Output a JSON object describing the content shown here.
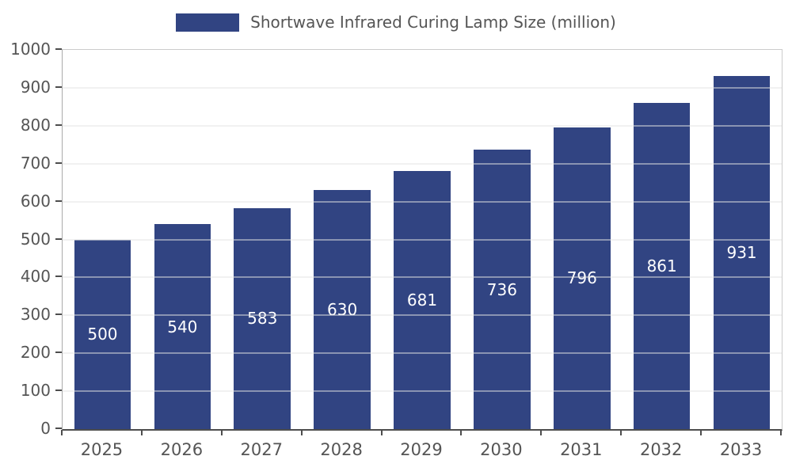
{
  "chart_data": {
    "type": "bar",
    "title": "Shortwave Infrared Curing Lamp Size (million)",
    "categories": [
      "2025",
      "2026",
      "2027",
      "2028",
      "2029",
      "2030",
      "2031",
      "2032",
      "2033"
    ],
    "values": [
      500,
      540,
      583,
      630,
      681,
      736,
      796,
      861,
      931
    ],
    "xlabel": "",
    "ylabel": "",
    "ylim": [
      0,
      1000
    ],
    "yticks": [
      0,
      100,
      200,
      300,
      400,
      500,
      600,
      700,
      800,
      900,
      1000
    ],
    "grid": true,
    "legend_position": "top",
    "bar_color": "#314482",
    "value_label_color": "#ffffff",
    "axis_text_color": "#555555"
  }
}
